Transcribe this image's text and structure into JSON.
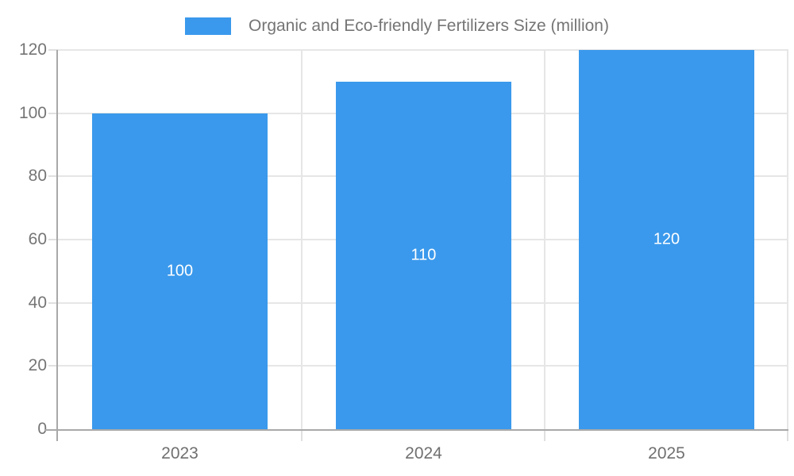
{
  "chart_data": {
    "type": "bar",
    "title": "Organic and Eco-friendly Fertilizers Size (million)",
    "legend_position": "top",
    "categories": [
      "2023",
      "2024",
      "2025"
    ],
    "values": [
      100,
      110,
      120
    ],
    "data_labels": [
      "100",
      "110",
      "120"
    ],
    "xlabel": "",
    "ylabel": "",
    "ylim": [
      0,
      120
    ],
    "yticks": [
      0,
      20,
      40,
      60,
      80,
      100,
      120
    ],
    "grid": true,
    "colors": {
      "bar": "#3A99EC",
      "gridline": "#e6e6e6",
      "axis_line": "#a9a9a9",
      "tick": "#e0e0e0",
      "axis_label": "#757575",
      "bar_label": "#ffffff",
      "background": "#ffffff"
    }
  }
}
